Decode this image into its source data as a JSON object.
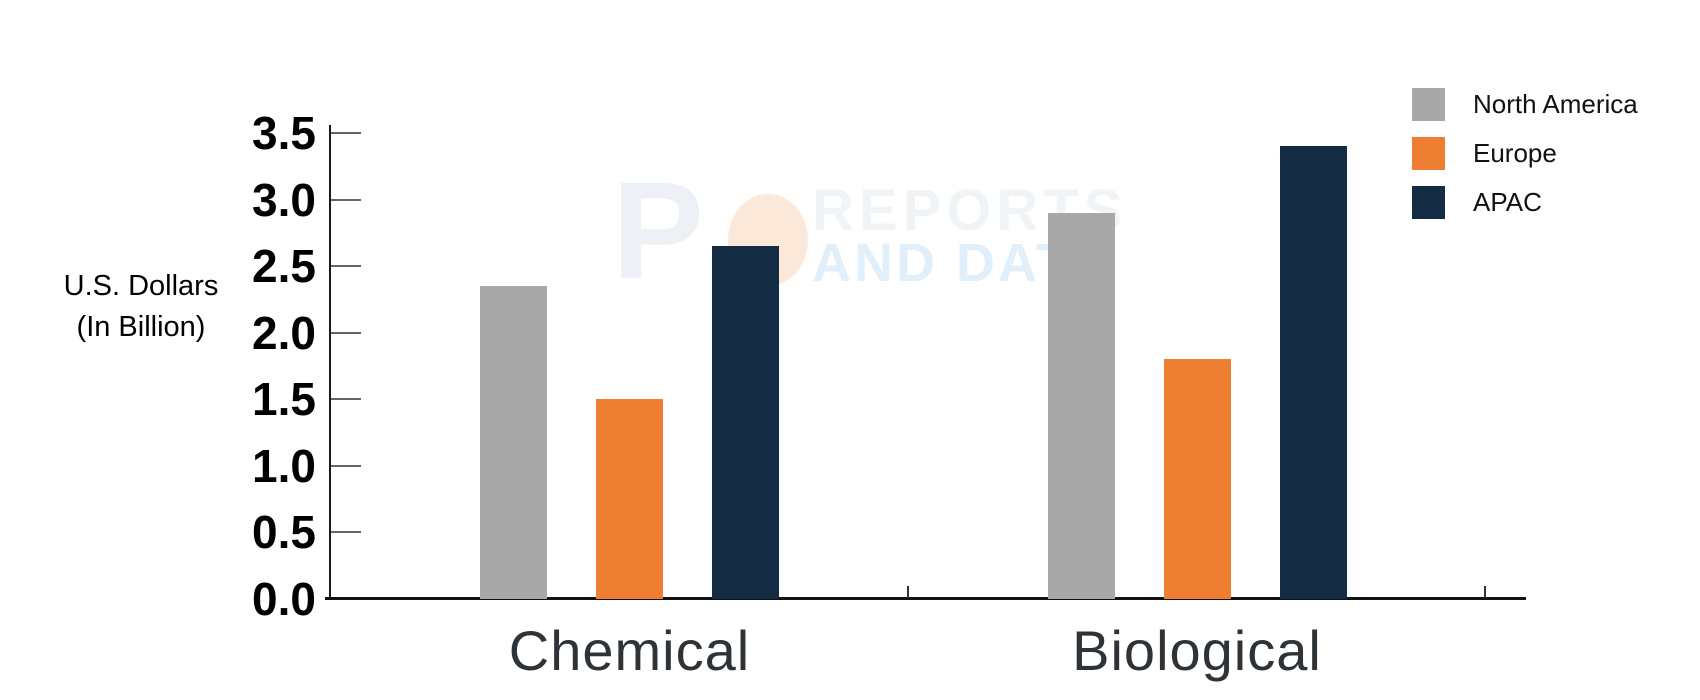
{
  "chart_data": {
    "type": "bar",
    "title": "",
    "categories": [
      "Chemical",
      "Biological"
    ],
    "series": [
      {
        "name": "North America",
        "color": "#a8a8a8",
        "values": [
          2.35,
          2.9
        ]
      },
      {
        "name": "Europe",
        "color": "#ee7e31",
        "values": [
          1.5,
          1.8
        ]
      },
      {
        "name": "APAC",
        "color": "#132c44",
        "values": [
          2.65,
          3.4
        ]
      }
    ],
    "ylabel_lines": [
      "U.S. Dollars",
      "(In Billion)"
    ],
    "y_tick_labels": [
      "0.0",
      "0.5",
      "1.0",
      "1.5",
      "2.0",
      "2.5",
      "3.0",
      "3.5"
    ],
    "ylim": [
      0,
      3.5
    ],
    "grid": "off",
    "legend_position": "top-right"
  },
  "watermark": {
    "logo_letter": "P",
    "line1": "REPORTS",
    "line2": "AND DATA"
  }
}
